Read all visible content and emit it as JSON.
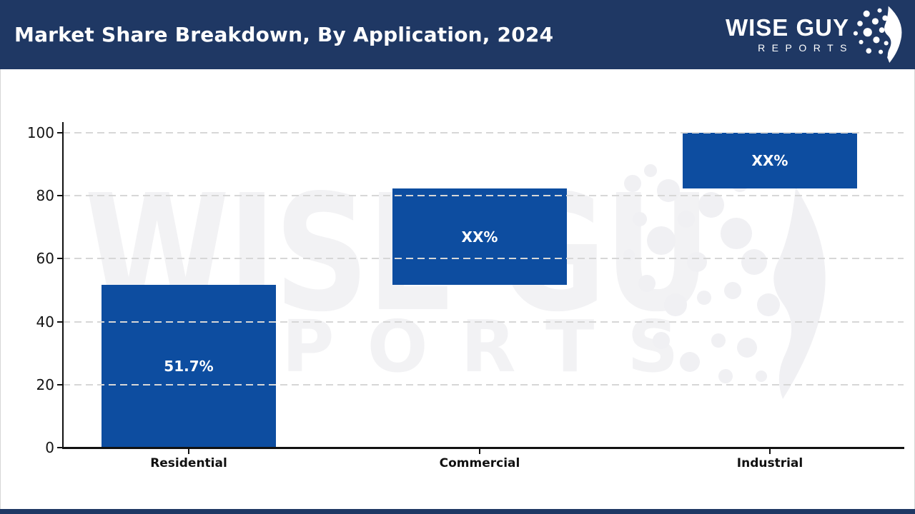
{
  "header": {
    "title": "Market Share Breakdown, By Application, 2024",
    "logo": {
      "name": "WISE GUY",
      "sub": "REPORTS"
    }
  },
  "watermark": {
    "line1": "WISE GU",
    "line2": "EPORTS"
  },
  "chart_data": {
    "type": "bar",
    "variant": "stacked-waterfall",
    "title": "Market Share Breakdown, By Application, 2024",
    "categories": [
      "Residential",
      "Commercial",
      "Industrial"
    ],
    "segments": [
      {
        "category": "Residential",
        "start": 0,
        "end": 51.7,
        "label": "51.7%"
      },
      {
        "category": "Commercial",
        "start": 51.7,
        "end": 82.3,
        "label": "XX%"
      },
      {
        "category": "Industrial",
        "start": 82.3,
        "end": 100,
        "label": "XX%"
      }
    ],
    "ylim": [
      0,
      100
    ],
    "yticks": [
      0,
      20,
      40,
      60,
      80,
      100
    ],
    "xlabel": "",
    "ylabel": "",
    "grid": "horizontal-dashed",
    "legend": false,
    "bar_color": "#0d4da0"
  },
  "colors": {
    "header_bg": "#1f3864",
    "footer_bg": "#1f3864",
    "bar": "#0d4da0",
    "grid": "#d7d7d7",
    "axis": "#111111",
    "watermark": "#f2f2f4"
  }
}
